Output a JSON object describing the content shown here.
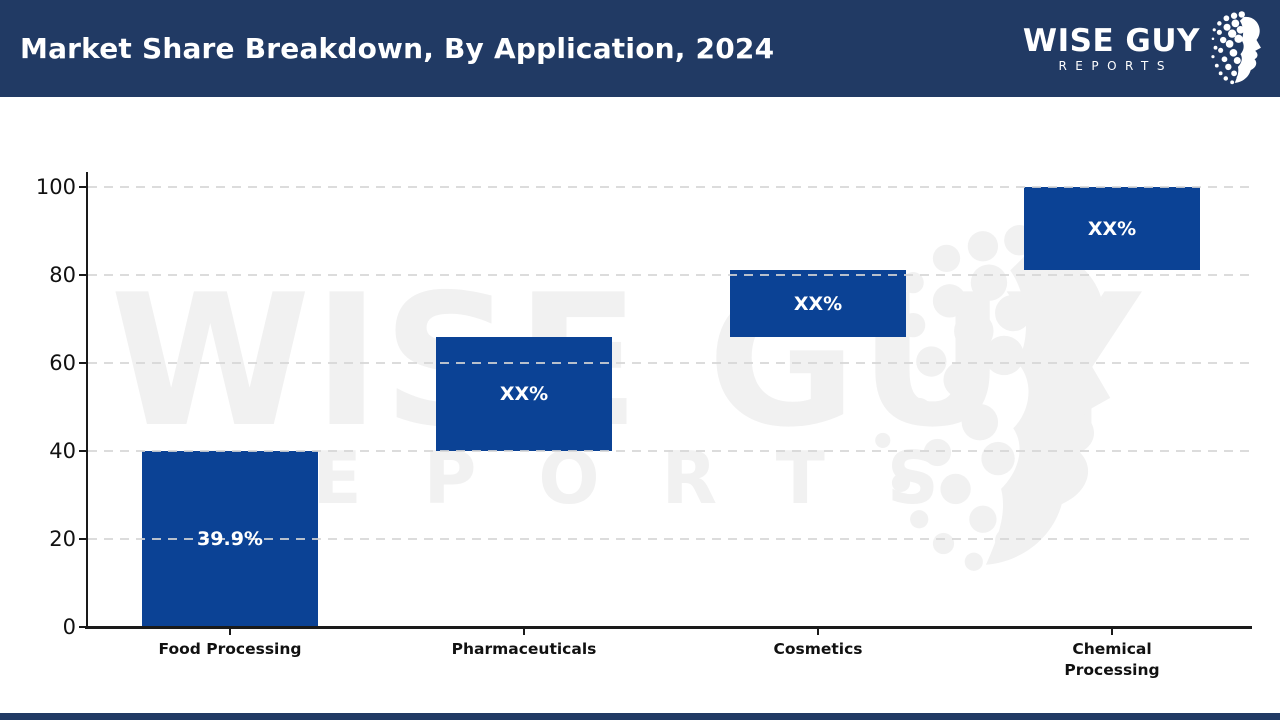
{
  "header": {
    "title": "Market Share Breakdown, By Application, 2024",
    "bg_color": "#213a64",
    "logo": {
      "line1": "WISE GUY",
      "line2": "REPORTS"
    }
  },
  "watermark": {
    "line1": "WISE GUY",
    "line2": "REPORTS"
  },
  "footer": {
    "bg_color": "#213a64"
  },
  "chart_data": {
    "type": "bar",
    "subtype": "waterfall",
    "title": "Market Share Breakdown, By Application, 2024",
    "categories": [
      "Food Processing",
      "Pharmaceuticals",
      "Cosmetics",
      "Chemical\nProcessing"
    ],
    "segments": [
      {
        "category": "Food Processing",
        "label": "39.9%",
        "start": 0,
        "end": 39.9
      },
      {
        "category": "Pharmaceuticals",
        "label": "XX%",
        "start": 39.9,
        "end": 65.9
      },
      {
        "category": "Cosmetics",
        "label": "XX%",
        "start": 65.9,
        "end": 81.1
      },
      {
        "category": "Chemical Processing",
        "label": "XX%",
        "start": 81.1,
        "end": 100
      }
    ],
    "yticks": [
      0,
      20,
      40,
      60,
      80,
      100
    ],
    "ylim": [
      0,
      100
    ],
    "bar_color": "#0b4295",
    "grid": true,
    "grid_style": "dashed",
    "legend": "none"
  }
}
